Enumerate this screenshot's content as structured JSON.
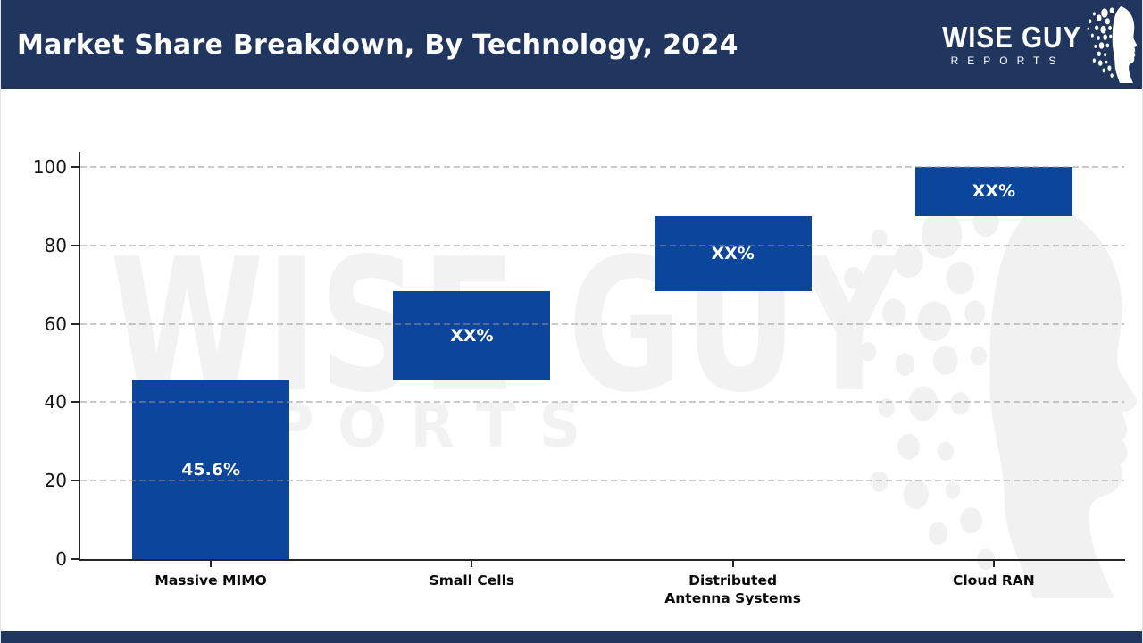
{
  "header": {
    "title": "Market Share Breakdown, By Technology, 2024",
    "logo": {
      "name": "WISE GUY",
      "sub": "REPORTS"
    }
  },
  "watermark": {
    "text": "WISE GUY",
    "sub": "REPORTS"
  },
  "colors": {
    "header_bg": "#21365E",
    "bar": "#0C469C",
    "watermark": "#F2F2F2",
    "axis": "#262626",
    "grid": "#D9D9D9"
  },
  "chart_data": {
    "type": "bar",
    "subtype": "floating-waterfall",
    "title": "Market Share Breakdown, By Technology, 2024",
    "categories": [
      "Massive MIMO",
      "Small Cells",
      "Distributed\nAntenna Systems",
      "Cloud RAN"
    ],
    "bars": [
      {
        "category": "Massive MIMO",
        "start": 0,
        "end": 45.6,
        "label": "45.6%"
      },
      {
        "category": "Small Cells",
        "start": 45.6,
        "end": 68.4,
        "label": "XX%"
      },
      {
        "category": "Distributed\nAntenna Systems",
        "start": 68.4,
        "end": 87.5,
        "label": "XX%"
      },
      {
        "category": "Cloud RAN",
        "start": 87.5,
        "end": 100,
        "label": "XX%"
      }
    ],
    "xlabel": "",
    "ylabel": "",
    "yticks": [
      0,
      20,
      40,
      60,
      80,
      100
    ],
    "ylim": [
      0,
      104
    ],
    "grid": "horizontal-dashed",
    "legend": "none",
    "bar_color": "#0C469C"
  }
}
